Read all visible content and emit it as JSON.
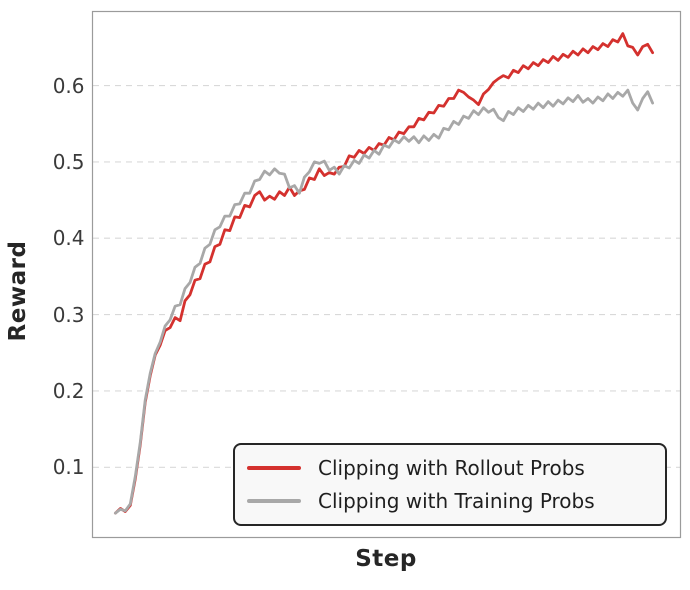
{
  "chart_data": {
    "type": "line",
    "title": "",
    "xlabel": "Step",
    "ylabel": "Reward",
    "xtick_labels": [],
    "yticks": [
      0.1,
      0.2,
      0.3,
      0.4,
      0.5,
      0.6
    ],
    "ytick_labels": [
      "0.1",
      "0.2",
      "0.3",
      "0.4",
      "0.5",
      "0.6"
    ],
    "xlim": [
      -4.6,
      113.6
    ],
    "ylim": [
      0.008,
      0.697
    ],
    "grid": "horizontal-dashed",
    "grid_color": "#d9d9d9",
    "spine_color": "#9b9b9b",
    "legend_position": "lower right",
    "x_unit": "step-index",
    "x": [
      0,
      1,
      2,
      3,
      4,
      5,
      6,
      7,
      8,
      9,
      10,
      11,
      12,
      13,
      14,
      15,
      16,
      17,
      18,
      19,
      20,
      21,
      22,
      23,
      24,
      25,
      26,
      27,
      28,
      29,
      30,
      31,
      32,
      33,
      34,
      35,
      36,
      37,
      38,
      39,
      40,
      41,
      42,
      43,
      44,
      45,
      46,
      47,
      48,
      49,
      50,
      51,
      52,
      53,
      54,
      55,
      56,
      57,
      58,
      59,
      60,
      61,
      62,
      63,
      64,
      65,
      66,
      67,
      68,
      69,
      70,
      71,
      72,
      73,
      74,
      75,
      76,
      77,
      78,
      79,
      80,
      81,
      82,
      83,
      84,
      85,
      86,
      87,
      88,
      89,
      90,
      91,
      92,
      93,
      94,
      95,
      96,
      97,
      98,
      99,
      100,
      101,
      102,
      103,
      104,
      105,
      106,
      107,
      108
    ],
    "series": [
      {
        "name": "Clipping with Rollout Probs",
        "color": "#d4312e",
        "line_width": 2.8,
        "values": [
          0.04,
          0.046,
          0.042,
          0.05,
          0.085,
          0.13,
          0.185,
          0.22,
          0.247,
          0.26,
          0.279,
          0.283,
          0.296,
          0.292,
          0.318,
          0.326,
          0.345,
          0.347,
          0.366,
          0.369,
          0.389,
          0.392,
          0.411,
          0.41,
          0.428,
          0.427,
          0.443,
          0.441,
          0.456,
          0.461,
          0.45,
          0.455,
          0.451,
          0.461,
          0.456,
          0.467,
          0.456,
          0.462,
          0.464,
          0.479,
          0.477,
          0.491,
          0.482,
          0.486,
          0.484,
          0.493,
          0.494,
          0.508,
          0.506,
          0.515,
          0.511,
          0.519,
          0.515,
          0.524,
          0.522,
          0.532,
          0.529,
          0.539,
          0.537,
          0.546,
          0.546,
          0.557,
          0.555,
          0.565,
          0.564,
          0.574,
          0.573,
          0.583,
          0.583,
          0.594,
          0.591,
          0.585,
          0.581,
          0.575,
          0.589,
          0.595,
          0.604,
          0.609,
          0.613,
          0.61,
          0.62,
          0.617,
          0.626,
          0.622,
          0.63,
          0.626,
          0.634,
          0.63,
          0.638,
          0.633,
          0.641,
          0.637,
          0.645,
          0.64,
          0.648,
          0.643,
          0.651,
          0.647,
          0.655,
          0.651,
          0.66,
          0.657,
          0.668,
          0.652,
          0.65,
          0.64,
          0.651,
          0.654,
          0.643
        ]
      },
      {
        "name": "Clipping with Training Probs",
        "color": "#a8a8a8",
        "line_width": 2.8,
        "values": [
          0.04,
          0.045,
          0.043,
          0.052,
          0.088,
          0.133,
          0.188,
          0.223,
          0.249,
          0.264,
          0.285,
          0.293,
          0.311,
          0.313,
          0.334,
          0.342,
          0.362,
          0.367,
          0.387,
          0.392,
          0.411,
          0.415,
          0.429,
          0.429,
          0.444,
          0.445,
          0.459,
          0.459,
          0.475,
          0.477,
          0.488,
          0.483,
          0.491,
          0.485,
          0.484,
          0.466,
          0.469,
          0.459,
          0.48,
          0.487,
          0.5,
          0.498,
          0.501,
          0.489,
          0.493,
          0.484,
          0.495,
          0.492,
          0.502,
          0.498,
          0.509,
          0.505,
          0.515,
          0.51,
          0.522,
          0.519,
          0.529,
          0.525,
          0.533,
          0.527,
          0.533,
          0.525,
          0.534,
          0.528,
          0.536,
          0.531,
          0.544,
          0.542,
          0.553,
          0.549,
          0.56,
          0.557,
          0.567,
          0.562,
          0.571,
          0.565,
          0.569,
          0.558,
          0.554,
          0.566,
          0.562,
          0.571,
          0.566,
          0.574,
          0.569,
          0.577,
          0.571,
          0.579,
          0.573,
          0.581,
          0.576,
          0.584,
          0.579,
          0.587,
          0.578,
          0.583,
          0.577,
          0.585,
          0.58,
          0.589,
          0.583,
          0.591,
          0.586,
          0.594,
          0.577,
          0.568,
          0.583,
          0.592,
          0.577
        ]
      }
    ]
  },
  "legend": {
    "items": [
      {
        "label": "Clipping with Rollout Probs",
        "color": "#d4312e"
      },
      {
        "label": "Clipping with Training Probs",
        "color": "#a8a8a8"
      }
    ]
  },
  "colors": {
    "background": "#ffffff",
    "legend_background": "#f8f8f8",
    "legend_border": "#262626",
    "tick_text": "#3a3a3a",
    "label_text": "#262626"
  }
}
